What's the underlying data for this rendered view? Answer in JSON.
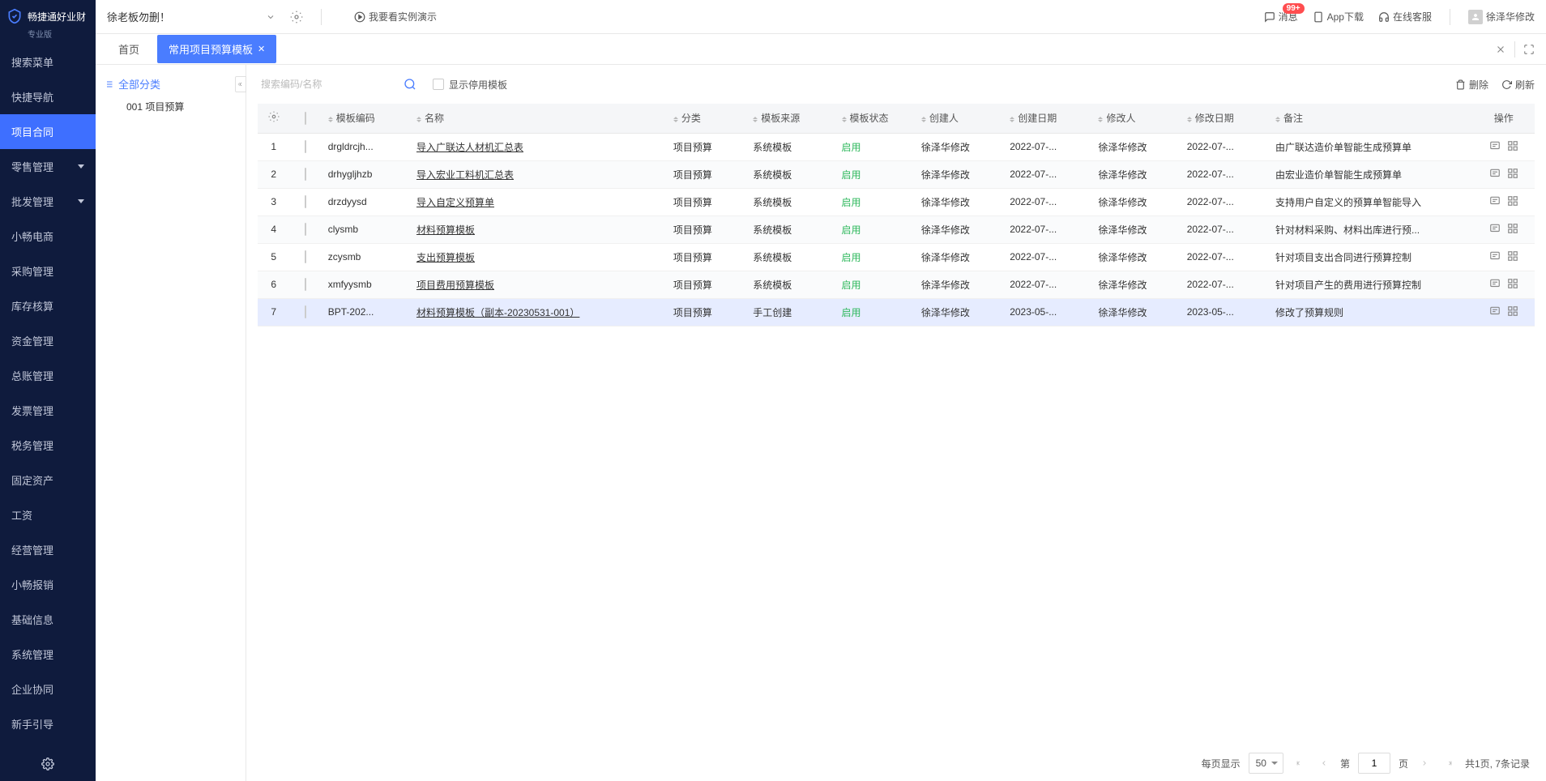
{
  "brand": {
    "name": "畅捷通好业财",
    "edition": "专业版"
  },
  "sidebar": {
    "items": [
      {
        "label": "搜索菜单",
        "expandable": false
      },
      {
        "label": "快捷导航",
        "expandable": false
      },
      {
        "label": "项目合同",
        "expandable": false,
        "active": true
      },
      {
        "label": "零售管理",
        "expandable": true
      },
      {
        "label": "批发管理",
        "expandable": true
      },
      {
        "label": "小畅电商",
        "expandable": false
      },
      {
        "label": "采购管理",
        "expandable": false
      },
      {
        "label": "库存核算",
        "expandable": false
      },
      {
        "label": "资金管理",
        "expandable": false
      },
      {
        "label": "总账管理",
        "expandable": false
      },
      {
        "label": "发票管理",
        "expandable": false
      },
      {
        "label": "税务管理",
        "expandable": false
      },
      {
        "label": "固定资产",
        "expandable": false
      },
      {
        "label": "工资",
        "expandable": false
      },
      {
        "label": "经营管理",
        "expandable": false
      },
      {
        "label": "小畅报销",
        "expandable": false
      },
      {
        "label": "基础信息",
        "expandable": false
      },
      {
        "label": "系统管理",
        "expandable": false
      },
      {
        "label": "企业协同",
        "expandable": false
      },
      {
        "label": "新手引导",
        "expandable": false
      }
    ]
  },
  "header": {
    "announcement": "徐老板勿删！",
    "demo_link": "我要看实例演示",
    "messages": {
      "label": "消息",
      "badge": "99+"
    },
    "app_download": "App下载",
    "online_service": "在线客服",
    "username": "徐泽华修改"
  },
  "tabs": [
    {
      "label": "首页",
      "active": false,
      "closable": false
    },
    {
      "label": "常用项目预算模板",
      "active": true,
      "closable": true
    }
  ],
  "category": {
    "root": "全部分类",
    "items": [
      {
        "code": "001",
        "name": "项目预算"
      }
    ]
  },
  "toolbar": {
    "search_placeholder": "搜索编码/名称",
    "show_disabled_label": "显示停用模板",
    "delete_label": "删除",
    "refresh_label": "刷新"
  },
  "table": {
    "columns": {
      "code": "模板编码",
      "name": "名称",
      "category": "分类",
      "source": "模板来源",
      "status": "模板状态",
      "creator": "创建人",
      "create_date": "创建日期",
      "modifier": "修改人",
      "modify_date": "修改日期",
      "remark": "备注",
      "action": "操作"
    },
    "rows": [
      {
        "idx": "1",
        "code": "drgldrcjh...",
        "name": "导入广联达人材机汇总表",
        "category": "项目预算",
        "source": "系统模板",
        "status": "启用",
        "creator": "徐泽华修改",
        "create_date": "2022-07-...",
        "modifier": "徐泽华修改",
        "modify_date": "2022-07-...",
        "remark": "由广联达造价单智能生成预算单"
      },
      {
        "idx": "2",
        "code": "drhygljhzb",
        "name": "导入宏业工料机汇总表",
        "category": "项目预算",
        "source": "系统模板",
        "status": "启用",
        "creator": "徐泽华修改",
        "create_date": "2022-07-...",
        "modifier": "徐泽华修改",
        "modify_date": "2022-07-...",
        "remark": "由宏业造价单智能生成预算单"
      },
      {
        "idx": "3",
        "code": "drzdyysd",
        "name": "导入自定义预算单",
        "category": "项目预算",
        "source": "系统模板",
        "status": "启用",
        "creator": "徐泽华修改",
        "create_date": "2022-07-...",
        "modifier": "徐泽华修改",
        "modify_date": "2022-07-...",
        "remark": "支持用户自定义的预算单智能导入"
      },
      {
        "idx": "4",
        "code": "clysmb",
        "name": "材料预算模板",
        "category": "项目预算",
        "source": "系统模板",
        "status": "启用",
        "creator": "徐泽华修改",
        "create_date": "2022-07-...",
        "modifier": "徐泽华修改",
        "modify_date": "2022-07-...",
        "remark": "针对材料采购、材料出库进行预..."
      },
      {
        "idx": "5",
        "code": "zcysmb",
        "name": "支出预算模板",
        "category": "项目预算",
        "source": "系统模板",
        "status": "启用",
        "creator": "徐泽华修改",
        "create_date": "2022-07-...",
        "modifier": "徐泽华修改",
        "modify_date": "2022-07-...",
        "remark": "针对项目支出合同进行预算控制"
      },
      {
        "idx": "6",
        "code": "xmfyysmb",
        "name": "项目费用预算模板",
        "category": "项目预算",
        "source": "系统模板",
        "status": "启用",
        "creator": "徐泽华修改",
        "create_date": "2022-07-...",
        "modifier": "徐泽华修改",
        "modify_date": "2022-07-...",
        "remark": "针对项目产生的费用进行预算控制"
      },
      {
        "idx": "7",
        "code": "BPT-202...",
        "name": "材料预算模板（副本-20230531-001）",
        "category": "项目预算",
        "source": "手工创建",
        "status": "启用",
        "creator": "徐泽华修改",
        "create_date": "2023-05-...",
        "modifier": "徐泽华修改",
        "modify_date": "2023-05-...",
        "remark": "修改了预算规则",
        "selected": true
      }
    ]
  },
  "pagination": {
    "per_page_label": "每页显示",
    "page_size": "50",
    "page_label_prefix": "第",
    "page_label_suffix": "页",
    "current_page": "1",
    "total_info": "共1页, 7条记录"
  },
  "colors": {
    "sidebar_bg": "#0f1b3d",
    "primary": "#4a7dff",
    "status_enabled": "#2eb85c",
    "badge": "#ff4d4f",
    "row_selected": "#e6ecff",
    "header_bg": "#f5f6f8"
  }
}
